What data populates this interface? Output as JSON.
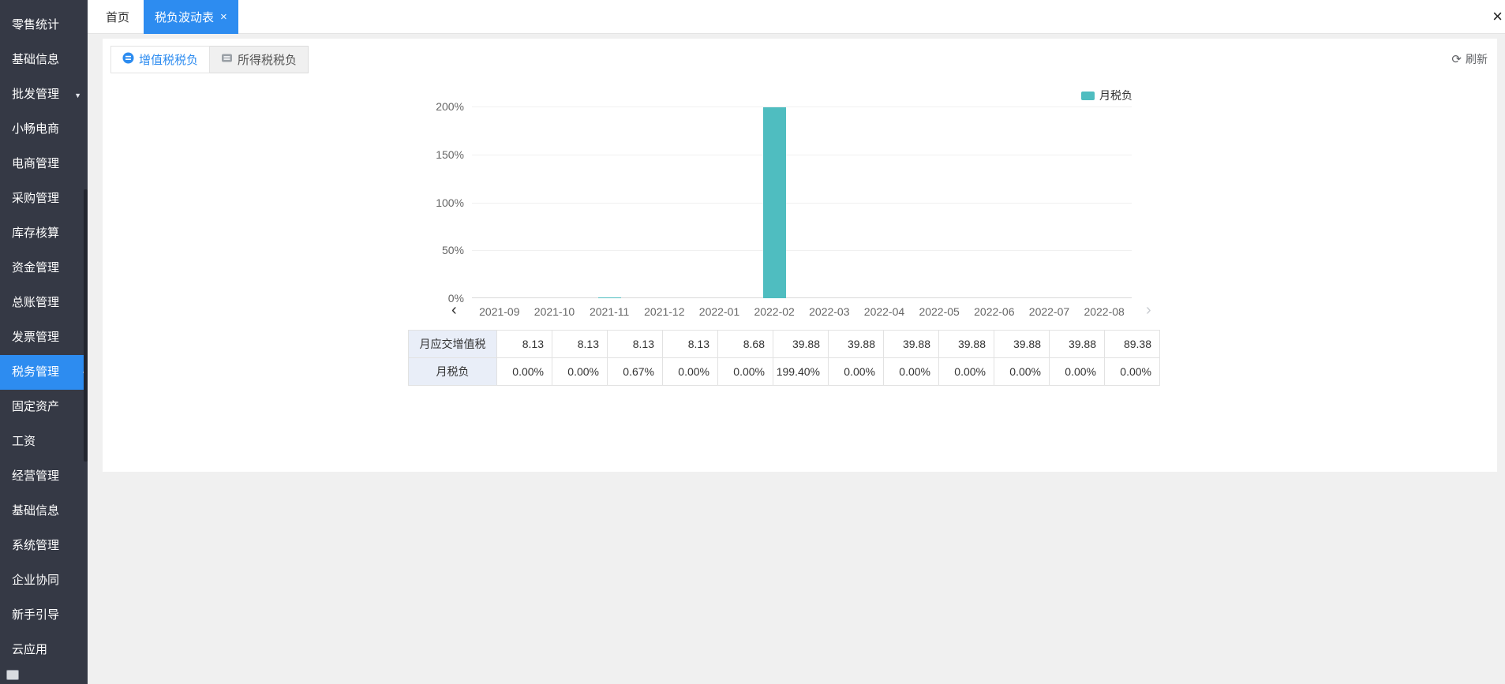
{
  "icons": {
    "close": "×",
    "tab_close": "×",
    "refresh": "⟳",
    "caret_down": "▼",
    "prev": "‹",
    "next": "›"
  },
  "colors": {
    "accent_blue": "#2d8cf0",
    "bar_teal": "#4fbdc0",
    "sidebar_bg": "#353945"
  },
  "sidebar": {
    "items": [
      {
        "label": "零售统计",
        "active": false
      },
      {
        "label": "基础信息",
        "active": false
      },
      {
        "label": "批发管理",
        "active": false,
        "has_dropdown": true
      },
      {
        "label": "小畅电商",
        "active": false
      },
      {
        "label": "电商管理",
        "active": false
      },
      {
        "label": "采购管理",
        "active": false
      },
      {
        "label": "库存核算",
        "active": false
      },
      {
        "label": "资金管理",
        "active": false
      },
      {
        "label": "总账管理",
        "active": false
      },
      {
        "label": "发票管理",
        "active": false
      },
      {
        "label": "税务管理",
        "active": true
      },
      {
        "label": "固定资产",
        "active": false
      },
      {
        "label": "工资",
        "active": false
      },
      {
        "label": "经营管理",
        "active": false
      },
      {
        "label": "基础信息",
        "active": false
      },
      {
        "label": "系统管理",
        "active": false
      },
      {
        "label": "企业协同",
        "active": false
      },
      {
        "label": "新手引导",
        "active": false
      },
      {
        "label": "云应用",
        "active": false
      }
    ]
  },
  "tabbar": {
    "tabs": [
      {
        "label": "首页",
        "active": false,
        "closable": false
      },
      {
        "label": "税负波动表",
        "active": true,
        "closable": true
      }
    ]
  },
  "panel": {
    "tabs": [
      {
        "label": "增值税税负",
        "active": true
      },
      {
        "label": "所得税税负",
        "active": false
      }
    ],
    "refresh_label": "刷新"
  },
  "chart_data": {
    "type": "bar",
    "title": "",
    "xlabel": "",
    "ylabel": "",
    "legend": [
      "月税负"
    ],
    "legend_position": "top-right",
    "grid": true,
    "categories": [
      "2021-09",
      "2021-10",
      "2021-11",
      "2021-12",
      "2022-01",
      "2022-02",
      "2022-03",
      "2022-04",
      "2022-05",
      "2022-06",
      "2022-07",
      "2022-08"
    ],
    "series": [
      {
        "name": "月税负",
        "values": [
          0,
          0,
          0.67,
          0,
          0,
          199.4,
          0,
          0,
          0,
          0,
          0,
          0
        ]
      }
    ],
    "ylim": [
      0,
      200
    ],
    "yticks": [
      "0%",
      "50%",
      "100%",
      "150%",
      "200%"
    ],
    "bar_color": "#4fbdc0"
  },
  "table": {
    "rows": [
      {
        "label": "月应交增值税",
        "values": [
          "8.13",
          "8.13",
          "8.13",
          "8.13",
          "8.68",
          "39.88",
          "39.88",
          "39.88",
          "39.88",
          "39.88",
          "39.88",
          "89.38"
        ]
      },
      {
        "label": "月税负",
        "values": [
          "0.00%",
          "0.00%",
          "0.67%",
          "0.00%",
          "0.00%",
          "199.40%",
          "0.00%",
          "0.00%",
          "0.00%",
          "0.00%",
          "0.00%",
          "0.00%"
        ]
      }
    ]
  }
}
